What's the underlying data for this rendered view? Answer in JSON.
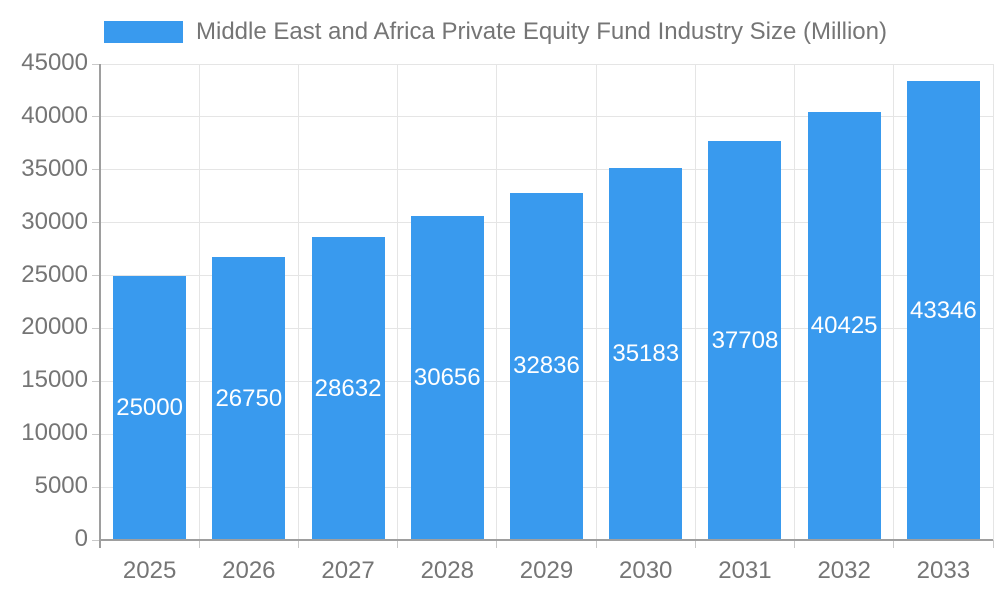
{
  "legend": {
    "label": "Middle East and Africa Private Equity Fund Industry Size (Million)"
  },
  "colors": {
    "bar": "#399AEE",
    "axis": "#9E9E9E",
    "grid": "#E5E5E5",
    "tick": "#C9C9C9",
    "text": "#757575",
    "bar_label": "#FFFFFF",
    "background": "#FFFFFF"
  },
  "chart_data": {
    "type": "bar",
    "title": "Middle East and Africa Private Equity Fund Industry Size (Million)",
    "categories": [
      "2025",
      "2026",
      "2027",
      "2028",
      "2029",
      "2030",
      "2031",
      "2032",
      "2033"
    ],
    "values": [
      25000,
      26750,
      28632,
      30656,
      32836,
      35183,
      37708,
      40425,
      43346
    ],
    "xlabel": "",
    "ylabel": "",
    "ylim": [
      0,
      45000
    ],
    "ytick_step": 5000,
    "ytick_labels": [
      "0",
      "5000",
      "10000",
      "15000",
      "20000",
      "25000",
      "30000",
      "35000",
      "40000",
      "45000"
    ],
    "grid": true,
    "legend_position": "top-left",
    "bar_value_labels": "inside-center"
  }
}
